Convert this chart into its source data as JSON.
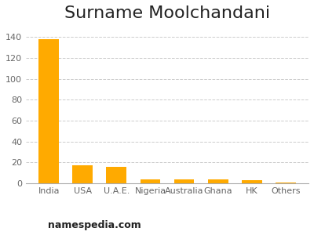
{
  "title": "Surname Moolchandani",
  "categories": [
    "India",
    "USA",
    "U.A.E.",
    "Nigeria",
    "Australia",
    "Ghana",
    "HK",
    "Others"
  ],
  "values": [
    138,
    17,
    16,
    4,
    4,
    4,
    3,
    1
  ],
  "bar_color": "#FFAA00",
  "background_color": "#ffffff",
  "ylim": [
    0,
    150
  ],
  "yticks": [
    0,
    20,
    40,
    60,
    80,
    100,
    120,
    140
  ],
  "grid_color": "#cccccc",
  "title_fontsize": 16,
  "tick_fontsize": 8,
  "watermark": "namespedia.com",
  "watermark_fontsize": 9
}
